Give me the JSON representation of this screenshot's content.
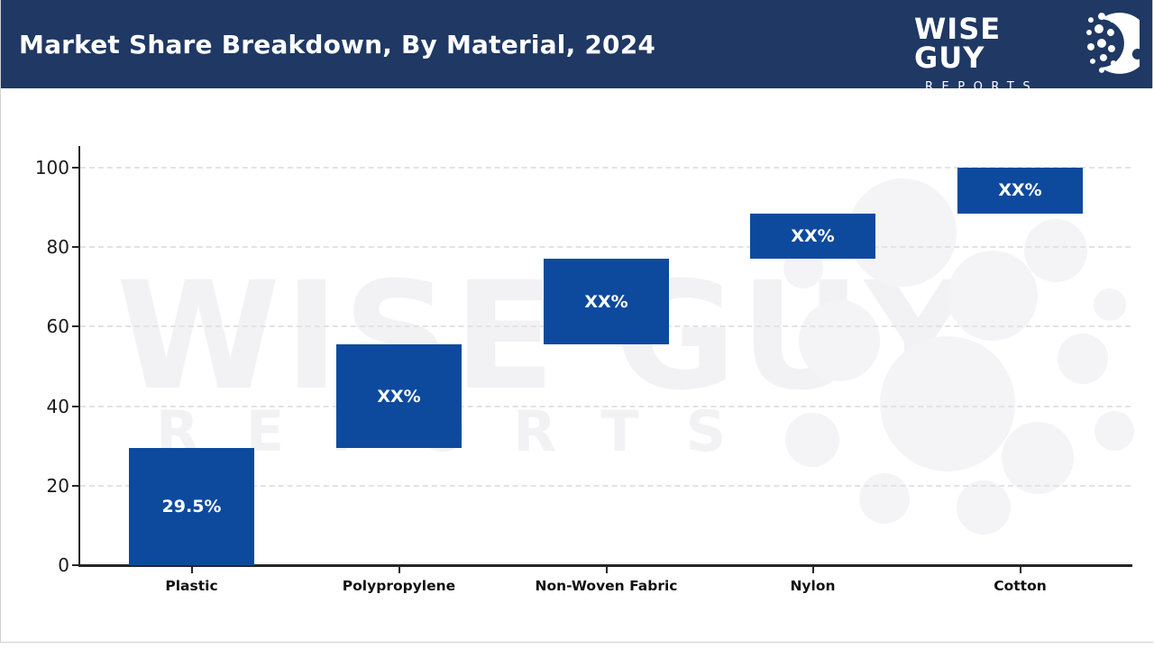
{
  "header": {
    "title": "Market Share Breakdown, By Material, 2024",
    "logo": {
      "line1": "WISE GUY",
      "line2": "REPORTS"
    }
  },
  "watermark": {
    "line1": "WISE GUY",
    "line2": "REPORTS"
  },
  "colors": {
    "header_bg": "#1f3864",
    "bar": "#0d4a9e",
    "bar_label": "#ffffff"
  },
  "chart_data": {
    "type": "bar",
    "subtype": "waterfall",
    "title": "Market Share Breakdown, By Material, 2024",
    "categories": [
      "Plastic",
      "Polypropylene",
      "Non-Woven Fabric",
      "Nylon",
      "Cotton"
    ],
    "segments": [
      {
        "category": "Plastic",
        "start": 0,
        "end": 29.5,
        "value": 29.5,
        "label": "29.5%"
      },
      {
        "category": "Polypropylene",
        "start": 29.5,
        "end": 55.5,
        "value": 26.0,
        "label": "XX%"
      },
      {
        "category": "Non-Woven Fabric",
        "start": 55.5,
        "end": 77.0,
        "value": 21.5,
        "label": "XX%"
      },
      {
        "category": "Nylon",
        "start": 77.0,
        "end": 88.5,
        "value": 11.5,
        "label": "XX%"
      },
      {
        "category": "Cotton",
        "start": 88.5,
        "end": 100.0,
        "value": 11.5,
        "label": "XX%"
      }
    ],
    "yticks": [
      0,
      20,
      40,
      60,
      80,
      100
    ],
    "ylim": [
      0,
      100
    ],
    "xlabel": "",
    "ylabel": "",
    "grid": "horizontal-dashed",
    "legend": "none"
  }
}
